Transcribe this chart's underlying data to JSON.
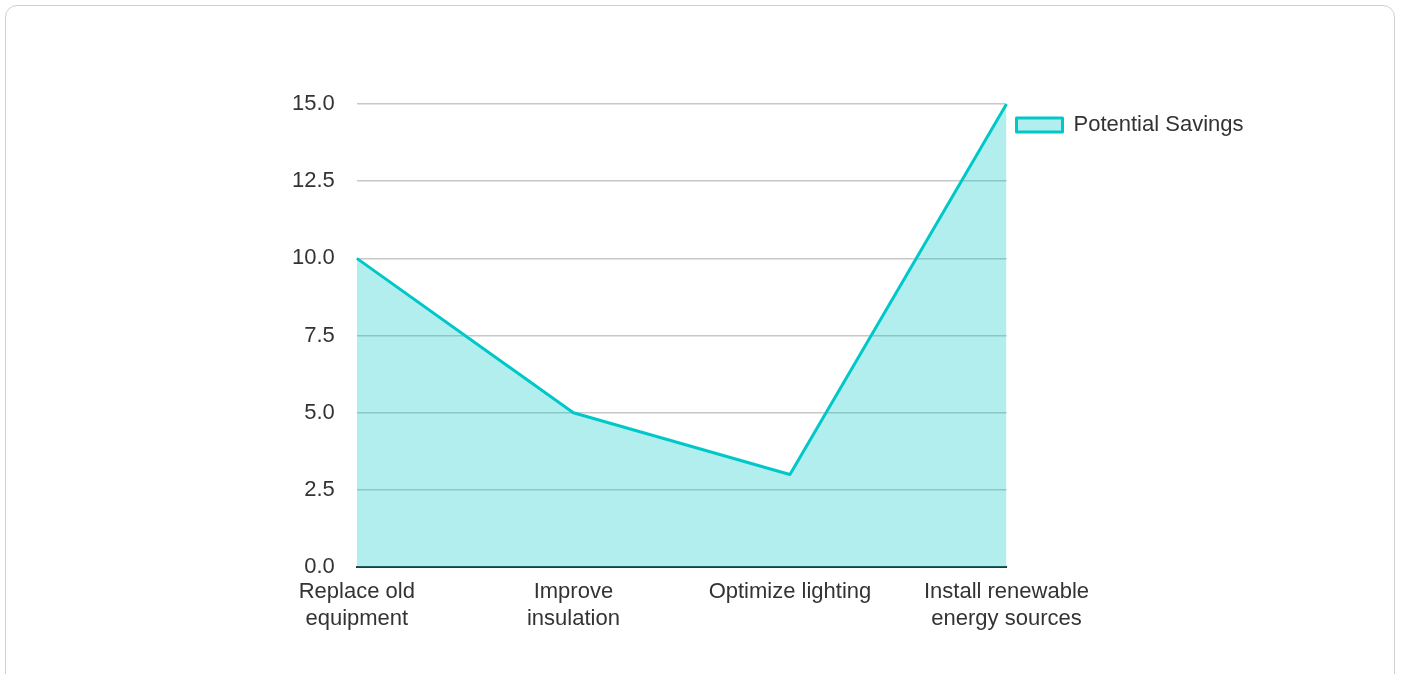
{
  "chart_data": {
    "type": "area",
    "categories": [
      "Replace old equipment",
      "Improve insulation",
      "Optimize lighting",
      "Install renewable energy sources"
    ],
    "series": [
      {
        "name": "Potential Savings",
        "color": "#00c8c8",
        "values": [
          10,
          5,
          3,
          15
        ]
      }
    ],
    "ylim": [
      0,
      15
    ],
    "yticks": [
      {
        "value": 0,
        "label": "0.0"
      },
      {
        "value": 2.5,
        "label": "2.5"
      },
      {
        "value": 5,
        "label": "5.0"
      },
      {
        "value": 7.5,
        "label": "7.5"
      },
      {
        "value": 10,
        "label": "10.0"
      },
      {
        "value": 12.5,
        "label": "12.5"
      },
      {
        "value": 15,
        "label": "15.0"
      }
    ],
    "grid": "y",
    "legend": "top right",
    "marker": "none"
  }
}
